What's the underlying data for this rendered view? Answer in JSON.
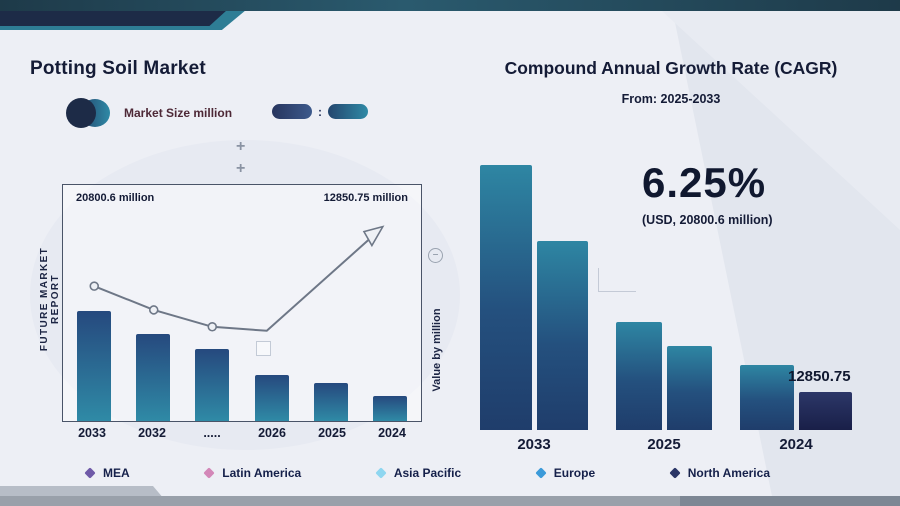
{
  "header": {
    "left_title": "Potting Soil Market",
    "right_title": "Compound Annual Growth Rate (CAGR)",
    "right_subtitle": "From: 2025-2033"
  },
  "legend": {
    "market_size_label": "Market Size million"
  },
  "left_chart": {
    "watermark": "FUTURE MARKET REPORT",
    "start_label": "20800.6 million",
    "end_label": "12850.75 million",
    "axis_label": "Value by million"
  },
  "cagr": {
    "value": "6.25%",
    "note": "(USD, 20800.6 million)",
    "callout_value": "12850.75"
  },
  "glyphs": {
    "plus": "+",
    "minus": "–",
    "colon": ":"
  },
  "chart_data": [
    {
      "type": "bar",
      "title": "Potting Soil Market - Market Size million",
      "categories": [
        "2033",
        "2032",
        ".....",
        "2026",
        "2025",
        "2024"
      ],
      "series": [
        {
          "name": "Market Size (relative bar height %)",
          "values": [
            58,
            46,
            38,
            24,
            20,
            13
          ]
        }
      ],
      "labeled_points": {
        "2033": "20800.6 million",
        "2024": "12850.75 million"
      },
      "overlay": "trend line with circle markers declining from 2033 to 2026, then an outlined arrow rising steeply to the upper right",
      "legend_position": "top-left",
      "grid": false,
      "xlabel": "",
      "ylabel": "Value by million"
    },
    {
      "type": "bar",
      "title": "Compound Annual Growth Rate (CAGR) From: 2025-2033",
      "categories": [
        "2033",
        "2025",
        "2024"
      ],
      "series": [
        {
          "name": "series-a (relative bar height %)",
          "values": [
            98,
            40,
            24
          ]
        },
        {
          "name": "series-b (relative bar height %)",
          "values": [
            70,
            31,
            14
          ]
        }
      ],
      "annotations": [
        "6.25%",
        "(USD, 20800.6 million)",
        "12850.75"
      ],
      "grid": false,
      "legend_position": "none"
    }
  ],
  "region_legend": [
    {
      "label": "MEA",
      "color": "#6f5aa8"
    },
    {
      "label": "Latin America",
      "color": "#d387b8"
    },
    {
      "label": "Asia Pacific",
      "color": "#8ed6f0"
    },
    {
      "label": "Europe",
      "color": "#3b9ad9"
    },
    {
      "label": "North America",
      "color": "#2a3566"
    }
  ],
  "colors": {
    "bar_gradient_top": "#2e86a3",
    "bar_gradient_bottom": "#1f3d6b",
    "accent_teal": "#2e7d95",
    "accent_navy": "#1d2b47",
    "dark_bar": "#1c2450"
  }
}
